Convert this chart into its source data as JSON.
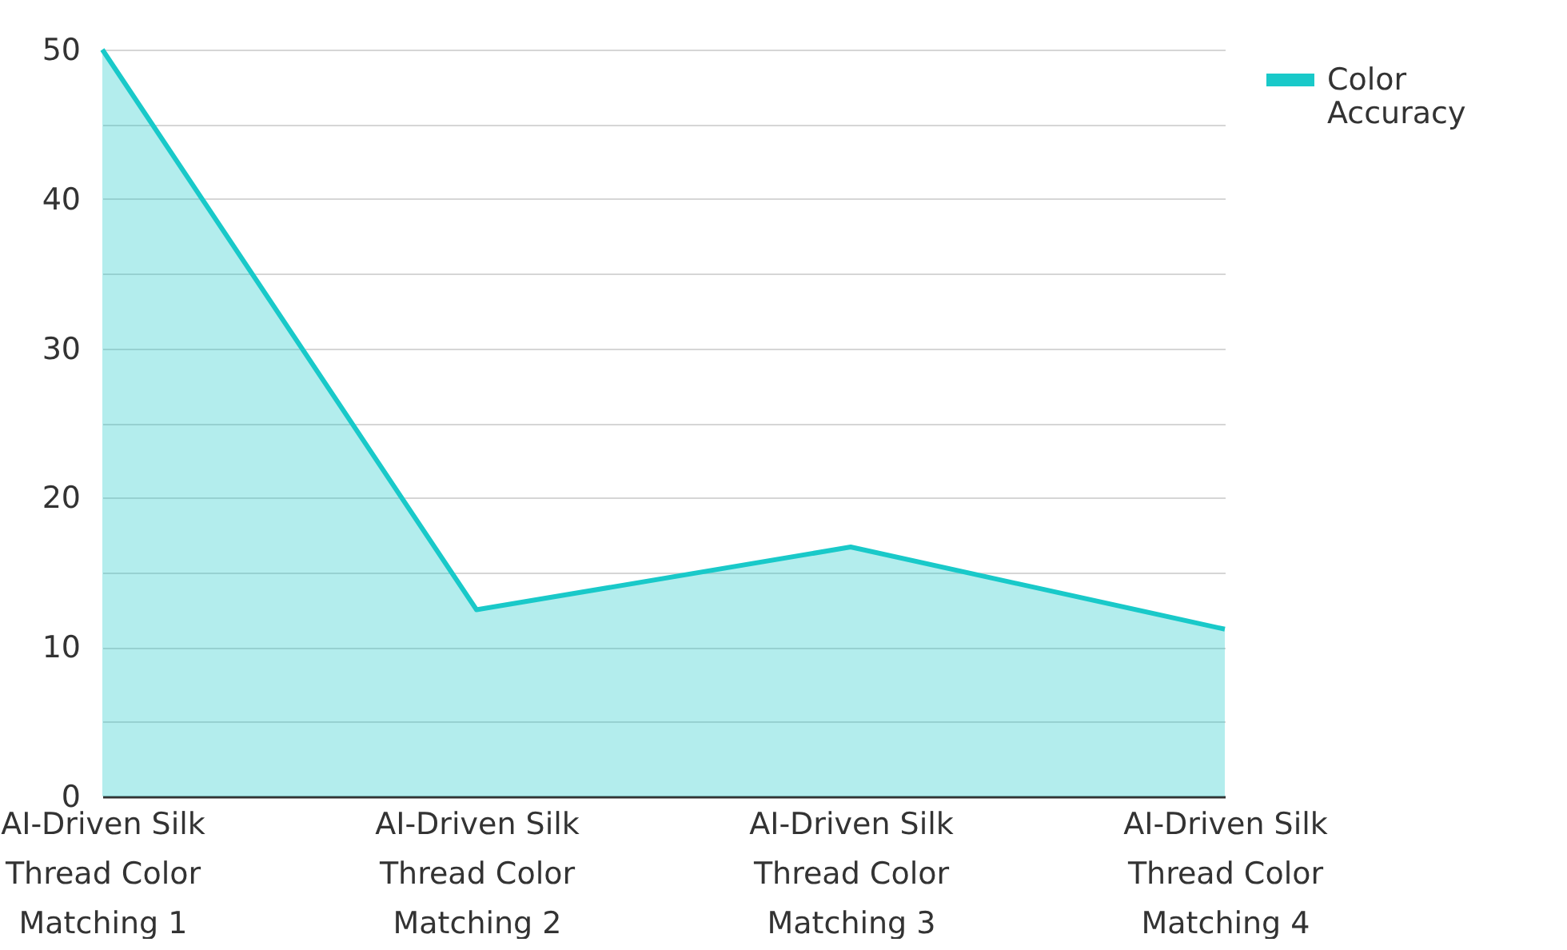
{
  "chart_data": {
    "type": "area",
    "categories": [
      "AI-Driven Silk Thread Color Matching 1",
      "AI-Driven Silk Thread Color Matching 2",
      "AI-Driven Silk Thread Color Matching 3",
      "AI-Driven Silk Thread Color Matching 4"
    ],
    "series": [
      {
        "name": "Color Accuracy",
        "color": "#19c9c9",
        "values": [
          50,
          12.5,
          16.7,
          11.2
        ]
      }
    ],
    "ylim": [
      0,
      50
    ],
    "yticks": [
      0,
      {
        "value": 5,
        "label": null
      },
      10,
      {
        "value": 15,
        "label": null
      },
      20,
      {
        "value": 25,
        "label": null
      },
      30,
      {
        "value": 35,
        "label": null
      },
      40,
      {
        "value": 45,
        "label": null
      },
      50
    ],
    "grid": "y",
    "legend": "top right"
  }
}
